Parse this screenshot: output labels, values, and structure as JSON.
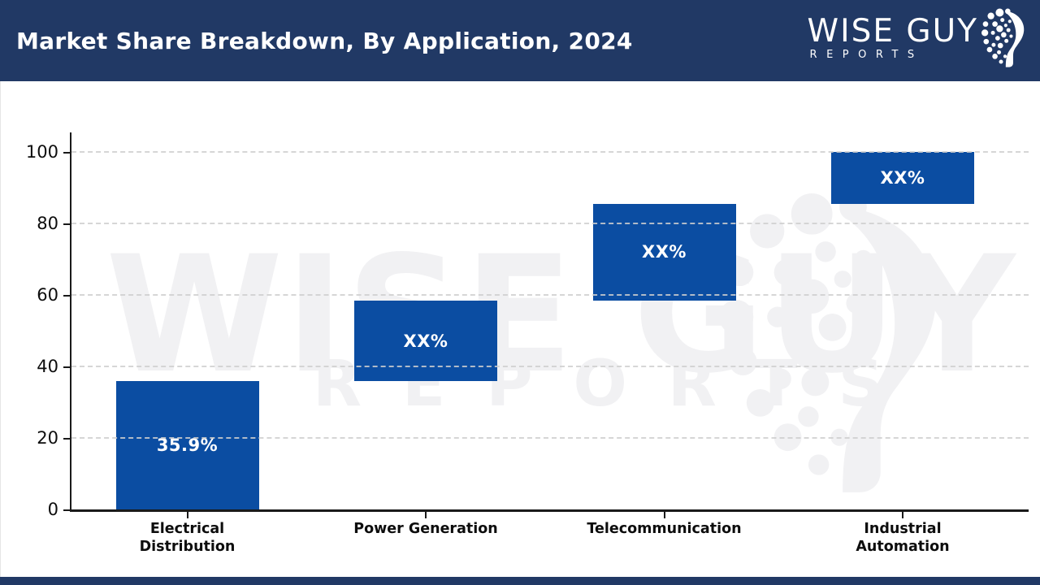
{
  "header": {
    "title": "Market Share Breakdown, By Application, 2024",
    "logo": {
      "line1": "WISE GUY",
      "line2": "REPORTS"
    }
  },
  "watermark": {
    "line1": "WISE GUY",
    "line2": "REPORTS"
  },
  "colors": {
    "header_bg": "#213965",
    "bar": "#0B4DA2",
    "bar_label": "#FFFFFF",
    "axis": "#1a1a1a",
    "grid": "#cfcfcf",
    "watermark": "#f1f1f3"
  },
  "chart_data": {
    "type": "bar",
    "subtype": "waterfall",
    "title": "Market Share Breakdown, By Application, 2024",
    "categories": [
      "Electrical\nDistribution",
      "Power Generation",
      "Telecommunication",
      "Industrial\nAutomation"
    ],
    "segments": [
      {
        "category": "Electrical Distribution",
        "start": 0,
        "end": 35.9,
        "value": 35.9,
        "label": "35.9%"
      },
      {
        "category": "Power Generation",
        "start": 35.9,
        "end": 58.4,
        "value": 22.5,
        "label": "XX%"
      },
      {
        "category": "Telecommunication",
        "start": 58.4,
        "end": 85.5,
        "value": 27.1,
        "label": "XX%"
      },
      {
        "category": "Industrial Automation",
        "start": 85.5,
        "end": 100,
        "value": 14.5,
        "label": "XX%"
      }
    ],
    "ylim": [
      0,
      100
    ],
    "yticks": [
      0,
      20,
      40,
      60,
      80,
      100
    ],
    "xlabel": "",
    "ylabel": "",
    "grid": "horizontal-dashed",
    "legend": "none"
  }
}
